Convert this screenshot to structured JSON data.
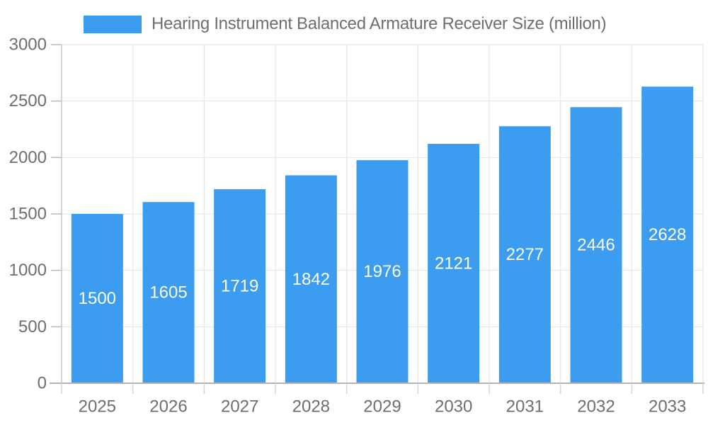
{
  "chart_data": {
    "type": "bar",
    "title": "Hearing Instrument Balanced Armature Receiver Size (million)",
    "series_name": "Hearing Instrument Balanced Armature Receiver Size (million)",
    "categories": [
      "2025",
      "2026",
      "2027",
      "2028",
      "2029",
      "2030",
      "2031",
      "2032",
      "2033"
    ],
    "values": [
      1500,
      1605,
      1719,
      1842,
      1976,
      2121,
      2277,
      2446,
      2628
    ],
    "xlabel": "",
    "ylabel": "",
    "ylim": [
      0,
      3000
    ],
    "yticks": [
      0,
      500,
      1000,
      1500,
      2000,
      2500,
      3000
    ],
    "grid": true,
    "legend_position": "top",
    "value_labels": "inside-center"
  },
  "colors": {
    "bar": "#3B9CF0",
    "value_label": "#FFFFFF",
    "grid_line": "#E3E3E3",
    "x_axis_line": "#B3B3B3",
    "y_axis_line": "#C6C6C6",
    "x_tick_line": "#D6D6D6",
    "y_tick_line": "#B9B9B9",
    "tick_text": "#6E6E6E",
    "background": "#FFFFFF"
  }
}
